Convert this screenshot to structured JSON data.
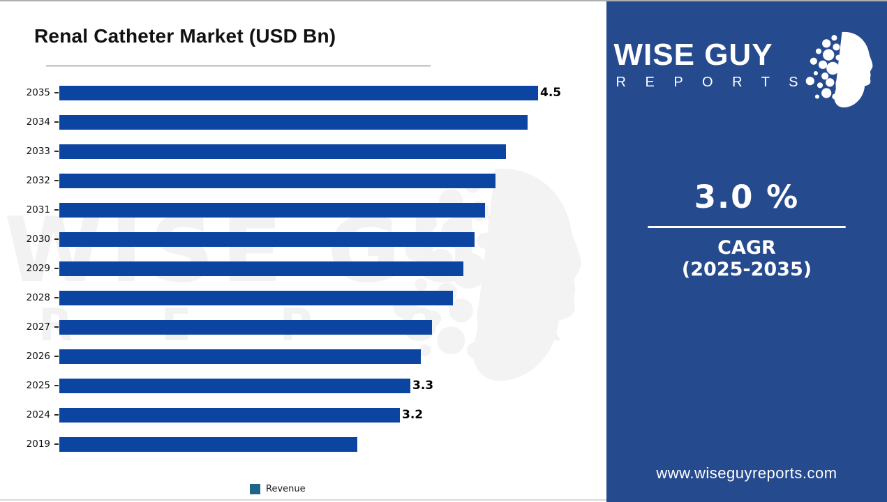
{
  "title": "Renal Catheter Market (USD Bn)",
  "chart_data": {
    "type": "bar",
    "orientation": "horizontal",
    "title": "Renal Catheter Market (USD Bn)",
    "categories": [
      "2035",
      "2034",
      "2033",
      "2032",
      "2031",
      "2030",
      "2029",
      "2028",
      "2027",
      "2026",
      "2025",
      "2024",
      "2019"
    ],
    "values": [
      4.5,
      4.4,
      4.2,
      4.1,
      4.0,
      3.9,
      3.8,
      3.7,
      3.5,
      3.4,
      3.3,
      3.2,
      2.8
    ],
    "shown_value_labels": [
      "4.5",
      "",
      "",
      "",
      "",
      "",
      "",
      "",
      "",
      "",
      "3.3",
      "3.2",
      ""
    ],
    "xlim": [
      0,
      4.5
    ],
    "grid": false,
    "legend": {
      "position": "bottom-center",
      "entries": [
        "Revenue"
      ]
    }
  },
  "watermark": {
    "line1": "WISE GUY",
    "line2": "R E P O R T S"
  },
  "panel": {
    "brand_line1": "WISE GUY",
    "brand_line2": "R E P O R T S",
    "cagr_value": "3.0 %",
    "cagr_line1": "CAGR",
    "cagr_line2": "(2025-2035)",
    "website": "www.wiseguyreports.com"
  },
  "colors": {
    "bar": "#0b45a1",
    "panel_bg": "#264a8e",
    "legend_swatch": "#1f6589",
    "title_text": "#111111",
    "watermark": "#f2f2f2"
  }
}
